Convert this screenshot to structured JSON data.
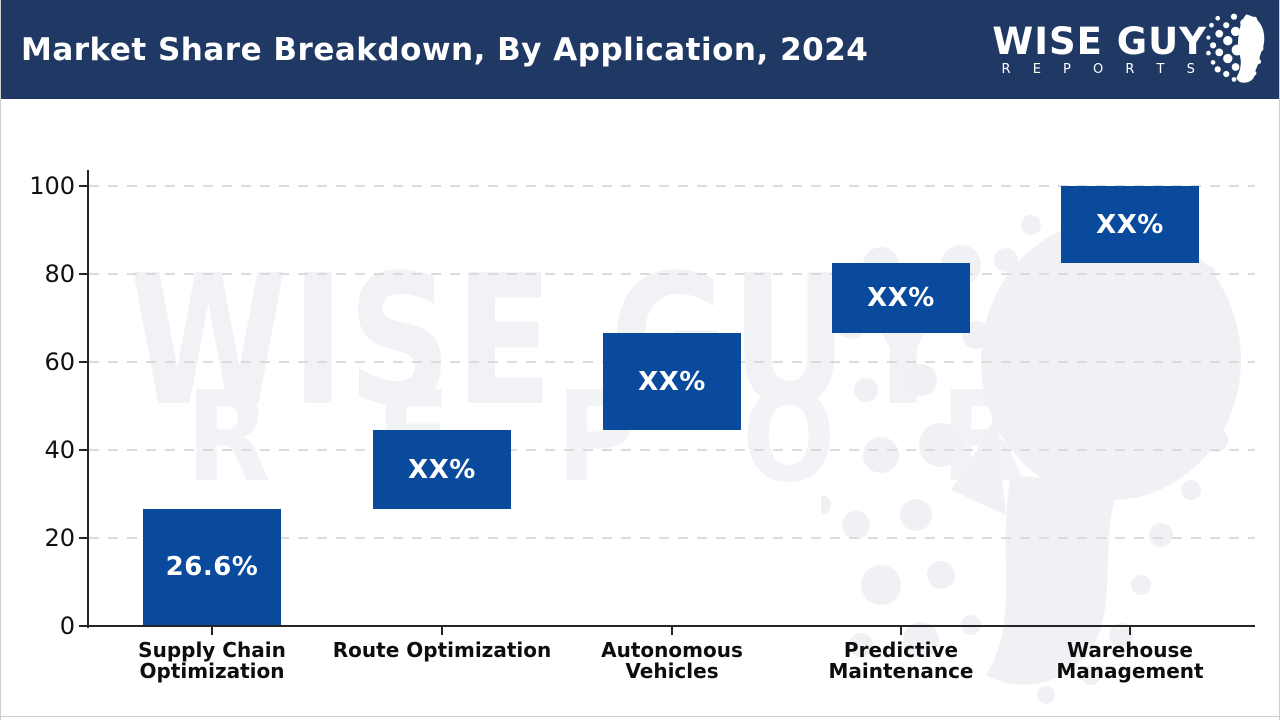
{
  "header": {
    "title": "Market Share Breakdown, By Application, 2024",
    "logo": {
      "name": "WISE GUY",
      "reports": "R E P O R T S"
    }
  },
  "watermark": {
    "name": "WISE GUY",
    "reports": "R E P O R T S"
  },
  "colors": {
    "header_bg": "#1F3864",
    "bar": "#0A4A9C",
    "bar_label": "#FFFFFF",
    "axis": "#262626",
    "grid": "#DBDBDB",
    "tick_text": "#111111",
    "watermark": "#F1F2F5"
  },
  "chart_data": {
    "type": "bar",
    "subtype": "waterfall",
    "title": "Market Share Breakdown, By Application, 2024",
    "unit": "%",
    "ylim": [
      0,
      100
    ],
    "yticks": [
      0,
      20,
      40,
      60,
      80,
      100
    ],
    "grid": "horizontal-dashed",
    "legend": "none",
    "categories": [
      "Supply Chain\nOptimization",
      "Route Optimization",
      "Autonomous\nVehicles",
      "Predictive\nMaintenance",
      "Warehouse\nManagement"
    ],
    "segments": [
      {
        "category": "Supply Chain Optimization",
        "start": 0,
        "end": 26.6,
        "label": "26.6%"
      },
      {
        "category": "Route Optimization",
        "start": 26.6,
        "end": 44.5,
        "label": "XX%"
      },
      {
        "category": "Autonomous Vehicles",
        "start": 44.5,
        "end": 66.5,
        "label": "XX%"
      },
      {
        "category": "Predictive Maintenance",
        "start": 66.5,
        "end": 82.5,
        "label": "XX%"
      },
      {
        "category": "Warehouse Management",
        "start": 82.5,
        "end": 100,
        "label": "XX%"
      }
    ]
  }
}
